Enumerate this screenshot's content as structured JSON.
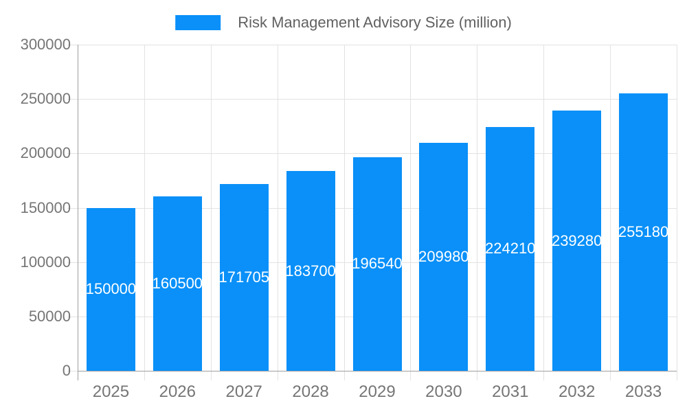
{
  "chart_data": {
    "type": "bar",
    "title": "Risk Management Advisory Size (million)",
    "categories": [
      "2025",
      "2026",
      "2027",
      "2028",
      "2029",
      "2030",
      "2031",
      "2032",
      "2033"
    ],
    "values": [
      150000,
      160500,
      171705,
      183700,
      196540,
      209980,
      224210,
      239280,
      255180
    ],
    "value_labels": [
      "150000",
      "160500",
      "171705",
      "183700",
      "196540",
      "209980",
      "224210",
      "239280",
      "255180"
    ],
    "xlabel": "",
    "ylabel": "",
    "ylim": [
      0,
      300000
    ],
    "yticks": [
      0,
      50000,
      100000,
      150000,
      200000,
      250000,
      300000
    ],
    "ytick_labels": [
      "0",
      "50000",
      "100000",
      "150000",
      "200000",
      "250000",
      "300000"
    ],
    "grid": true,
    "legend_position": "top-center",
    "colors": {
      "bar": "#0a90f8",
      "axis": "#9e9e9e",
      "grid": "#e2e2e2",
      "tick_text": "#757575",
      "legend_text": "#616161",
      "value_text": "#ffffff"
    }
  }
}
